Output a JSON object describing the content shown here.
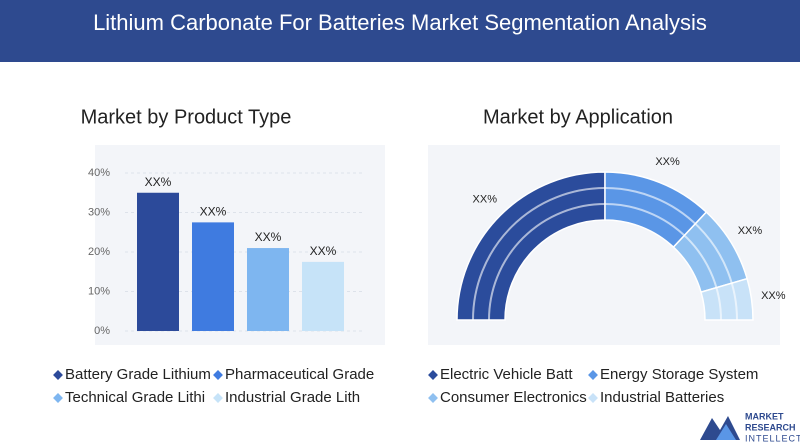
{
  "title": "Lithium Carbonate For Batteries Market Segmentation Analysis",
  "chart_data": [
    {
      "type": "bar",
      "title": "Market by Product Type",
      "categories": [
        "Battery Grade Lithium",
        "Pharmaceutical Grade",
        "Technical Grade Lithi",
        "Industrial Grade Lith"
      ],
      "values": [
        35,
        27.5,
        21,
        17.5
      ],
      "value_labels": [
        "XX%",
        "XX%",
        "XX%",
        "XX%"
      ],
      "colors": [
        "#2c4a9a",
        "#3f7be0",
        "#7eb6f0",
        "#c6e3f8"
      ],
      "ylim": [
        0,
        40
      ],
      "yticks": [
        {
          "value": 0,
          "label": "0%"
        },
        {
          "value": 10,
          "label": "10%"
        },
        {
          "value": 20,
          "label": "20%"
        },
        {
          "value": 30,
          "label": "30%"
        },
        {
          "value": 40,
          "label": "40%"
        }
      ],
      "grid": true
    },
    {
      "type": "pie",
      "title": "Market by Application",
      "categories": [
        "Electric Vehicle Batt",
        "Energy Storage System",
        "Consumer Electronics",
        "Industrial Batteries"
      ],
      "values": [
        50,
        24,
        17,
        9
      ],
      "value_labels": [
        "XX%",
        "XX%",
        "XX%",
        "XX%"
      ],
      "colors": [
        "#2b4c9c",
        "#5a96e6",
        "#8fc0f0",
        "#c8e2f8"
      ]
    }
  ],
  "logo": [
    "MARKET",
    "RESEARCH",
    "INTELLECT"
  ]
}
